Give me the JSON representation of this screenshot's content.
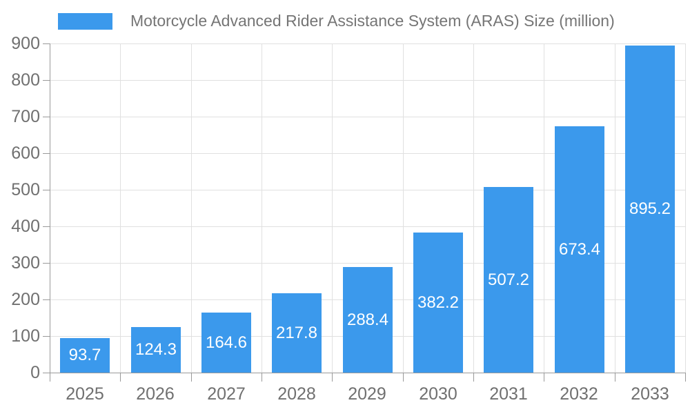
{
  "chart_data": {
    "type": "bar",
    "title": "",
    "categories": [
      "2025",
      "2026",
      "2027",
      "2028",
      "2029",
      "2030",
      "2031",
      "2032",
      "2033"
    ],
    "series": [
      {
        "name": "Motorcycle Advanced Rider Assistance System (ARAS) Size (million)",
        "values": [
          93.7,
          124.3,
          164.6,
          217.8,
          288.4,
          382.2,
          507.2,
          673.4,
          895.2
        ]
      }
    ],
    "value_labels": [
      "93.7",
      "124.3",
      "164.6",
      "217.8",
      "288.4",
      "382.2",
      "507.2",
      "673.4",
      "895.2"
    ],
    "xlabel": "",
    "ylabel": "",
    "ylim": [
      0,
      900
    ],
    "y_ticks": [
      0,
      100,
      200,
      300,
      400,
      500,
      600,
      700,
      800,
      900
    ],
    "grid": true,
    "legend_position": "top-left",
    "bar_label_position": "center",
    "colors": {
      "bar": "#3b99ec",
      "grid": "#e0e0e0",
      "axis": "#999999",
      "tick_text": "#707070",
      "legend_text": "#757575",
      "bar_label": "#ffffff",
      "background": "#ffffff"
    }
  }
}
